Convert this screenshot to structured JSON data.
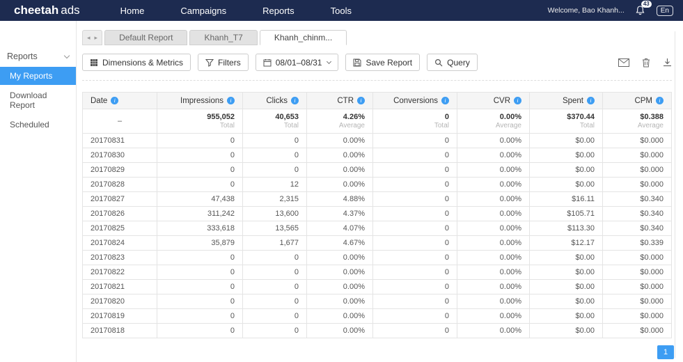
{
  "navbar": {
    "logo_bold": "cheetah",
    "logo_rest": "ads",
    "items": [
      "Home",
      "Campaigns",
      "Reports",
      "Tools"
    ],
    "welcome": "Welcome,",
    "username": "Bao Khanh...",
    "notification_count": "43",
    "language": "En"
  },
  "sidebar": {
    "section": "Reports",
    "items": [
      "My Reports",
      "Download Report",
      "Scheduled"
    ]
  },
  "tabs": [
    "Default Report",
    "Khanh_T7",
    "Khanh_chinm..."
  ],
  "toolbar": {
    "dimensions_metrics": "Dimensions & Metrics",
    "filters": "Filters",
    "date_range": "08/01–08/31",
    "save_report": "Save Report",
    "query": "Query"
  },
  "table": {
    "columns": [
      "Date",
      "Impressions",
      "Clicks",
      "CTR",
      "Conversions",
      "CVR",
      "Spent",
      "CPM"
    ],
    "totals": {
      "date": "–",
      "values": [
        "955,052",
        "40,653",
        "4.26%",
        "0",
        "0.00%",
        "$370.44",
        "$0.388"
      ],
      "sublabels": [
        "Total",
        "Total",
        "Average",
        "Total",
        "Average",
        "Total",
        "Average"
      ]
    },
    "rows": [
      [
        "20170831",
        "0",
        "0",
        "0.00%",
        "0",
        "0.00%",
        "$0.00",
        "$0.000"
      ],
      [
        "20170830",
        "0",
        "0",
        "0.00%",
        "0",
        "0.00%",
        "$0.00",
        "$0.000"
      ],
      [
        "20170829",
        "0",
        "0",
        "0.00%",
        "0",
        "0.00%",
        "$0.00",
        "$0.000"
      ],
      [
        "20170828",
        "0",
        "12",
        "0.00%",
        "0",
        "0.00%",
        "$0.00",
        "$0.000"
      ],
      [
        "20170827",
        "47,438",
        "2,315",
        "4.88%",
        "0",
        "0.00%",
        "$16.11",
        "$0.340"
      ],
      [
        "20170826",
        "311,242",
        "13,600",
        "4.37%",
        "0",
        "0.00%",
        "$105.71",
        "$0.340"
      ],
      [
        "20170825",
        "333,618",
        "13,565",
        "4.07%",
        "0",
        "0.00%",
        "$113.30",
        "$0.340"
      ],
      [
        "20170824",
        "35,879",
        "1,677",
        "4.67%",
        "0",
        "0.00%",
        "$12.17",
        "$0.339"
      ],
      [
        "20170823",
        "0",
        "0",
        "0.00%",
        "0",
        "0.00%",
        "$0.00",
        "$0.000"
      ],
      [
        "20170822",
        "0",
        "0",
        "0.00%",
        "0",
        "0.00%",
        "$0.00",
        "$0.000"
      ],
      [
        "20170821",
        "0",
        "0",
        "0.00%",
        "0",
        "0.00%",
        "$0.00",
        "$0.000"
      ],
      [
        "20170820",
        "0",
        "0",
        "0.00%",
        "0",
        "0.00%",
        "$0.00",
        "$0.000"
      ],
      [
        "20170819",
        "0",
        "0",
        "0.00%",
        "0",
        "0.00%",
        "$0.00",
        "$0.000"
      ],
      [
        "20170818",
        "0",
        "0",
        "0.00%",
        "0",
        "0.00%",
        "$0.00",
        "$0.000"
      ]
    ]
  },
  "pagination": {
    "page": "1"
  },
  "colors": {
    "accent": "#3d9df3",
    "navbar": "#1d2b50"
  }
}
